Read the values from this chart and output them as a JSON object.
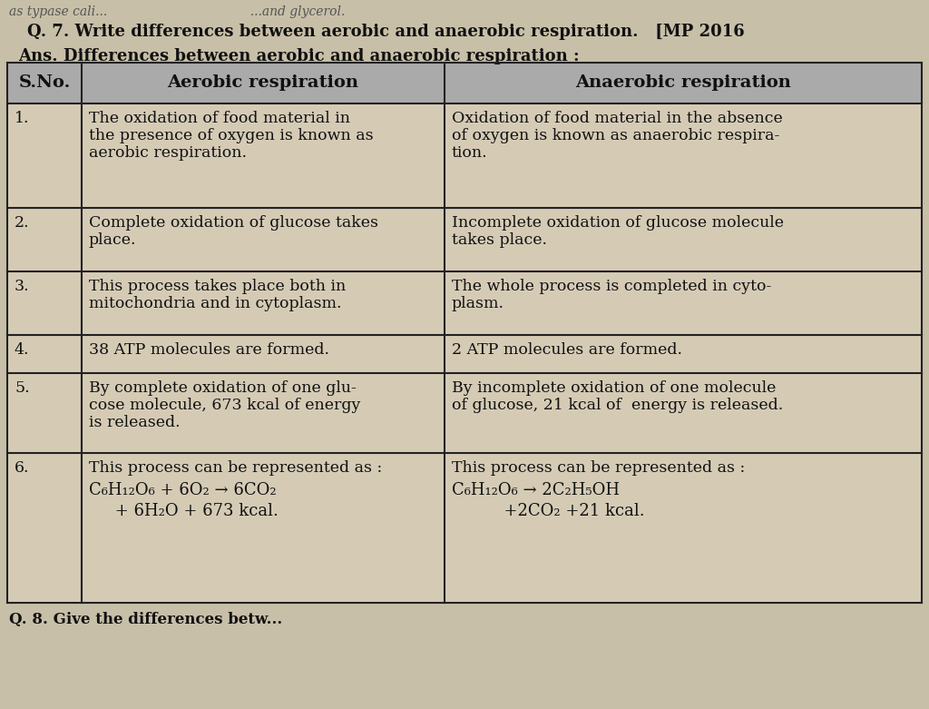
{
  "title_line1": "Q. 7. Write differences between aerobic and anaerobic respiration.   [MP 2016",
  "title_line2": "Ans. Differences between aerobic and anaerobic respiration :",
  "top_partial": "as typase cali...           ...and glycerol.",
  "header": [
    "S.No.",
    "Aerobic respiration",
    "Anaerobic respiration"
  ],
  "rows": [
    {
      "no": "1.",
      "aerobic": "The oxidation of food material in\nthe presence of oxygen is known as\naerobic respiration.",
      "anaerobic": "Oxidation of food material in the absence\nof oxygen is known as anaerobic respira-\ntion."
    },
    {
      "no": "2.",
      "aerobic": "Complete oxidation of glucose takes\nplace.",
      "anaerobic": "Incomplete oxidation of glucose molecule\ntakes place."
    },
    {
      "no": "3.",
      "aerobic": "This process takes place both in\nmitochondria and in cytoplasm.",
      "anaerobic": "The whole process is completed in cyto-\nplasm."
    },
    {
      "no": "4.",
      "aerobic": "38 ATP molecules are formed.",
      "anaerobic": "2 ATP molecules are formed."
    },
    {
      "no": "5.",
      "aerobic": "By complete oxidation of one glu-\ncose molecule, 673 kcal of energy\nis released.",
      "anaerobic": "By incomplete oxidation of one molecule\nof glucose, 21 kcal of  energy is released."
    },
    {
      "no": "6.",
      "aerobic_lines": [
        "This process can be represented as :",
        "C₆H₁₂O₆ + 6O₂ → 6CO₂",
        "     + 6H₂O + 673 kcal."
      ],
      "anaerobic_lines": [
        "This process can be represented as :",
        "C₆H₁₂O₆ → 2C₂H₅OH",
        "          +2CO₂ +21 kcal."
      ]
    }
  ],
  "bg_color": "#c8bfa8",
  "header_bg": "#888888",
  "cell_bg": "#d8ceb8",
  "text_color": "#111111",
  "border_color": "#333333",
  "font_size": 12.5,
  "header_font_size": 14,
  "bottom_text": "Q. 8. Give the differences betw..."
}
